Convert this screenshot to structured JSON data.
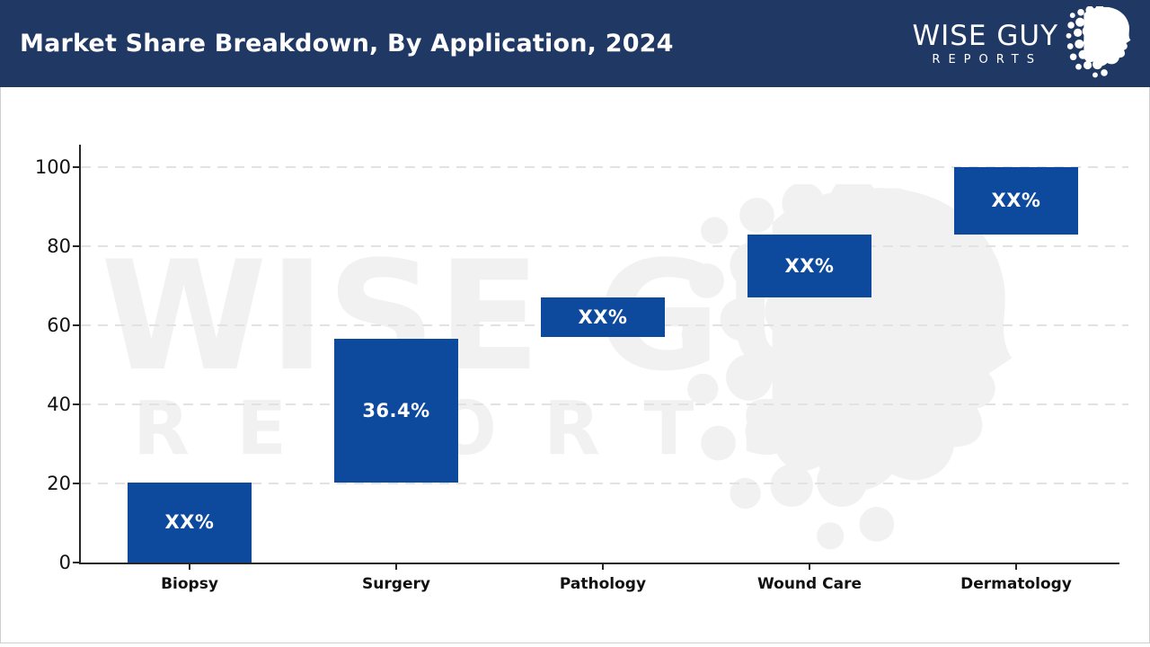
{
  "header": {
    "title": "Market Share Breakdown, By Application, 2024",
    "logo_line1": "WISE GUY",
    "logo_line2": "REPORTS",
    "bg_color": "#203864"
  },
  "watermark": {
    "line1": "WISE GUY",
    "line2": "REPORTS"
  },
  "chart_data": {
    "type": "bar",
    "subtype": "waterfall",
    "title": "Market Share Breakdown, By Application, 2024",
    "categories": [
      "Biopsy",
      "Surgery",
      "Pathology",
      "Wound Care",
      "Dermatology"
    ],
    "segments": [
      {
        "category": "Biopsy",
        "start": 0,
        "end": 20.3,
        "label": "XX%"
      },
      {
        "category": "Surgery",
        "start": 20.3,
        "end": 56.7,
        "label": "36.4%"
      },
      {
        "category": "Pathology",
        "start": 57,
        "end": 67,
        "label": "XX%"
      },
      {
        "category": "Wound Care",
        "start": 67,
        "end": 83,
        "label": "XX%"
      },
      {
        "category": "Dermatology",
        "start": 83,
        "end": 100,
        "label": "XX%"
      }
    ],
    "known_value_note": "Only Surgery shows a numeric value (36.4%); all other bars display XX%",
    "xlabel": "",
    "ylabel": "",
    "ylim": [
      0,
      100
    ],
    "yticks": [
      0,
      20,
      40,
      60,
      80,
      100
    ],
    "grid": "dashed horizontal gridlines",
    "legend": "none",
    "bar_color": "#0d4a9e",
    "bar_label_color": "#ffffff"
  }
}
